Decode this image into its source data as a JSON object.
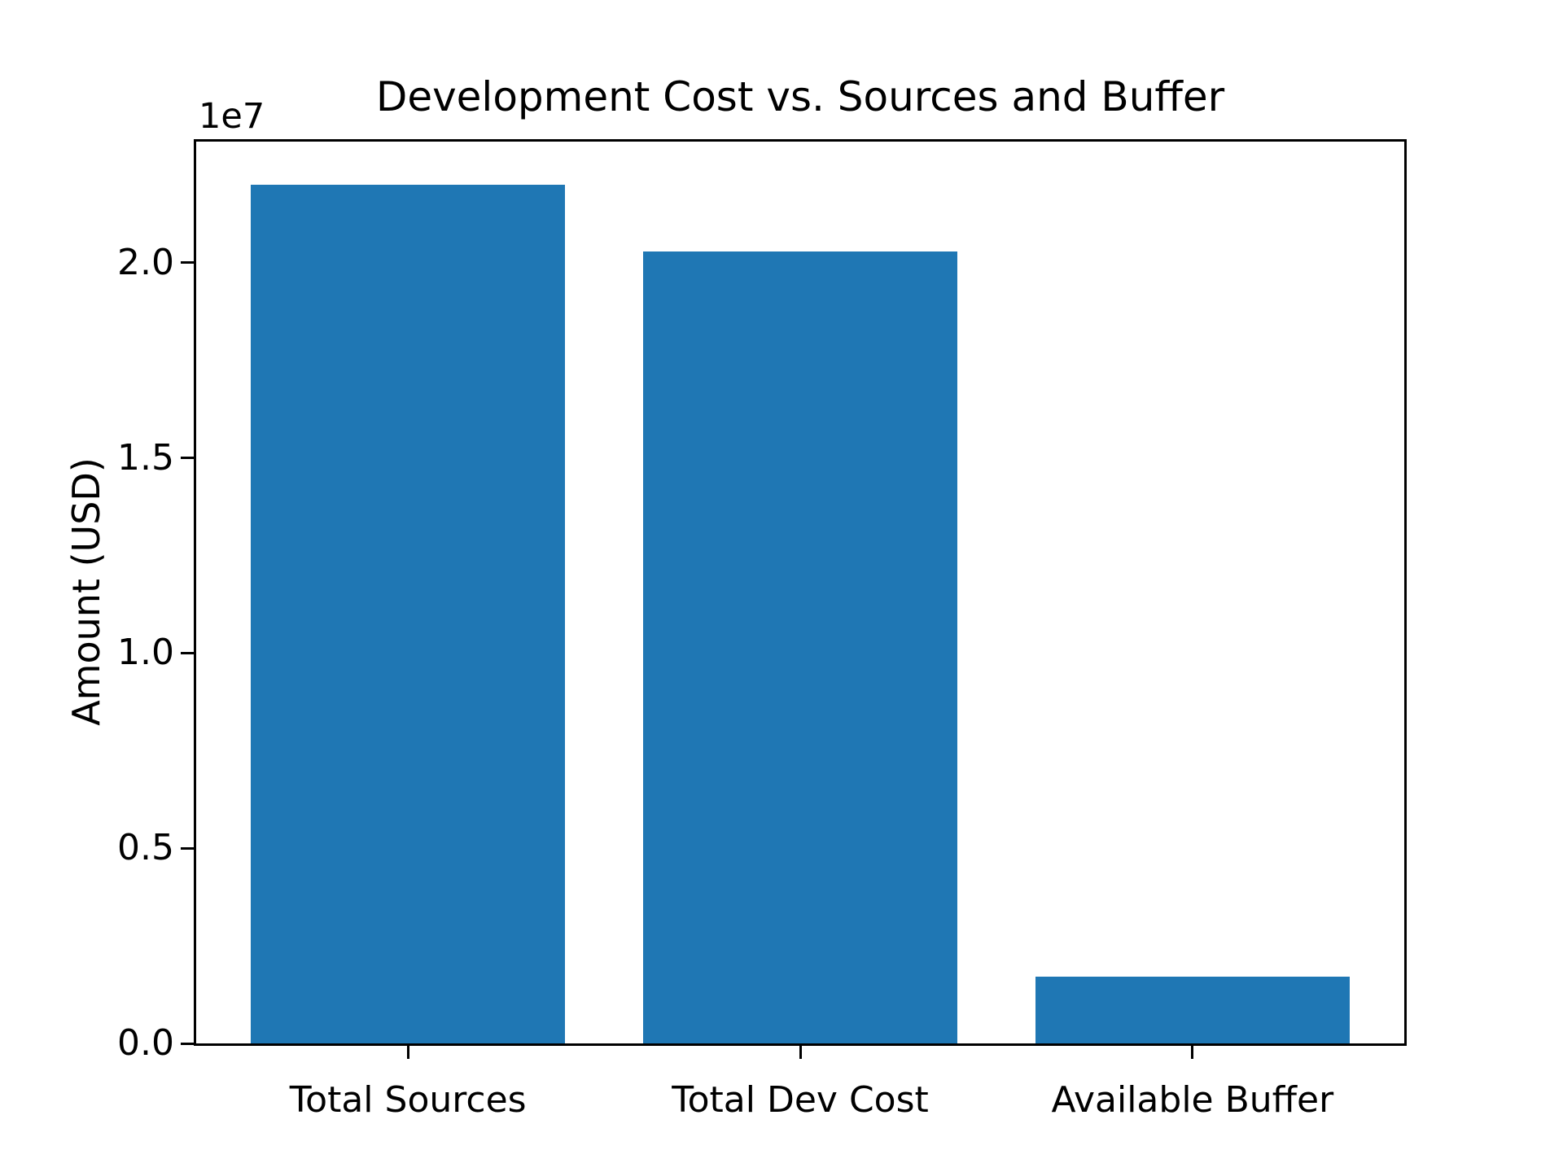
{
  "chart_data": {
    "type": "bar",
    "title": "Development Cost vs. Sources and Buffer",
    "ylabel": "Amount (USD)",
    "xlabel": "",
    "offset_text": "1e7",
    "categories": [
      "Total Sources",
      "Total Dev Cost",
      "Available Buffer"
    ],
    "values": [
      22000000,
      20280000,
      1720000
    ],
    "bar_color": "#1f77b4",
    "axis_color": "#000000",
    "text_color": "#000000",
    "background_color": "#ffffff",
    "ylim": [
      0,
      23100000
    ],
    "yticks": [
      {
        "value": 0,
        "label": "0.0"
      },
      {
        "value": 5000000,
        "label": "0.5"
      },
      {
        "value": 10000000,
        "label": "1.0"
      },
      {
        "value": 15000000,
        "label": "1.5"
      },
      {
        "value": 20000000,
        "label": "2.0"
      }
    ],
    "xlim": [
      -0.54,
      2.54
    ],
    "bar_width": 0.8,
    "grid": false,
    "legend": false
  }
}
